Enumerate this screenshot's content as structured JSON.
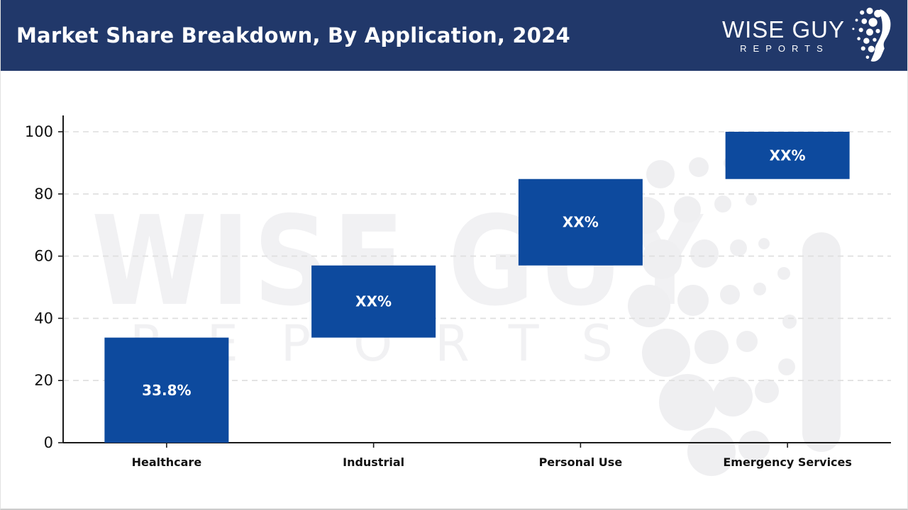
{
  "header": {
    "title": "Market Share Breakdown, By Application, 2024",
    "logo": {
      "line1": "WISE GUY",
      "line2": "REPORTS"
    },
    "bg_color": "#21386a",
    "text_color": "#ffffff"
  },
  "watermark": {
    "line1": "WISE GUY",
    "line2": "REPORTS"
  },
  "chart_data": {
    "type": "bar",
    "subtype": "waterfall",
    "title": "Market Share Breakdown, By Application, 2024",
    "categories": [
      "Healthcare",
      "Industrial",
      "Personal Use",
      "Emergency Services"
    ],
    "series": [
      {
        "name": "Market share (%)",
        "segments": [
          {
            "category": "Healthcare",
            "base": 0,
            "top": 33.8,
            "label": "33.8%"
          },
          {
            "category": "Industrial",
            "base": 33.8,
            "top": 57,
            "label": "XX%"
          },
          {
            "category": "Personal Use",
            "base": 57,
            "top": 84.8,
            "label": "XX%"
          },
          {
            "category": "Emergency Services",
            "base": 84.8,
            "top": 100,
            "label": "XX%"
          }
        ]
      }
    ],
    "ylim": [
      0,
      100
    ],
    "yticks": [
      0,
      20,
      40,
      60,
      80,
      100
    ],
    "xlabel": "",
    "ylabel": "",
    "legend": "none",
    "grid": "horizontal-dashed",
    "bar_color": "#0d4a9e",
    "bar_label_color": "#ffffff",
    "axis_color": "#1a1a1a",
    "note": "Values other than Healthcare are masked as XX% in the source image"
  }
}
